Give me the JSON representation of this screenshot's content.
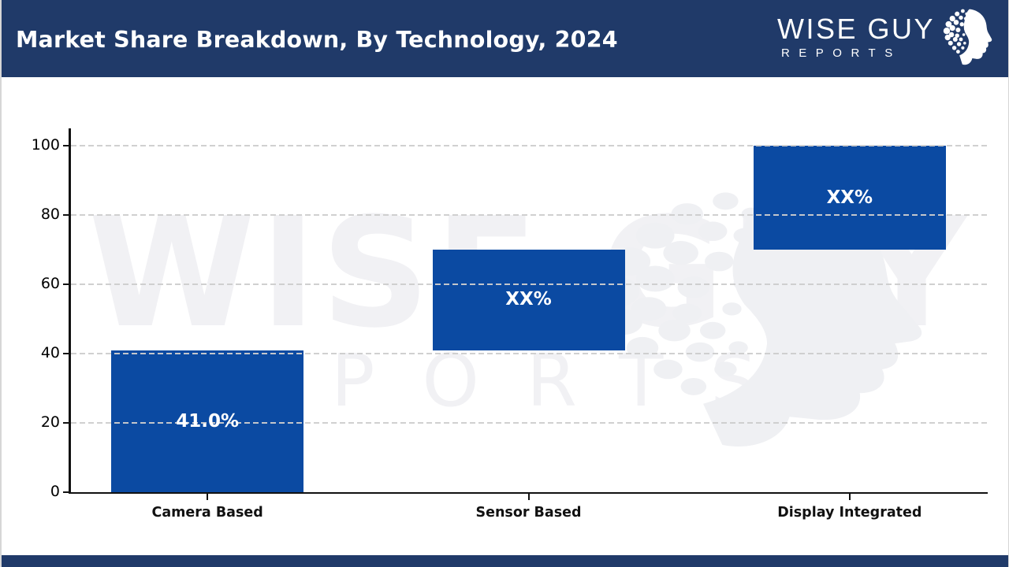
{
  "header": {
    "title": "Market Share Breakdown, By Technology, 2024",
    "logo": {
      "line1": "WISE GUY",
      "line2": "REPORTS"
    }
  },
  "watermark": {
    "line1": "WISE GUY",
    "line2": "REPORTS"
  },
  "chart_data": {
    "type": "bar",
    "variant": "floating-cumulative-bars",
    "title": "Market Share Breakdown, By Technology, 2024",
    "categories": [
      "Camera Based",
      "Sensor Based",
      "Display Integrated"
    ],
    "bars": [
      {
        "category": "Camera Based",
        "start": 0,
        "end": 41,
        "label": "41.0%"
      },
      {
        "category": "Sensor Based",
        "start": 41,
        "end": 70,
        "label": "XX%"
      },
      {
        "category": "Display Integrated",
        "start": 70,
        "end": 100,
        "label": "XX%"
      }
    ],
    "xlabel": "",
    "ylabel": "",
    "ylim": [
      0,
      100
    ],
    "yticks": [
      0,
      20,
      40,
      60,
      80,
      100
    ],
    "grid": {
      "axis": "y",
      "style": "dashed",
      "color": "#cccccc",
      "above_bars": true
    },
    "legend": null,
    "colors": {
      "bar": "#0b4aa2",
      "header_bg": "#203a69",
      "axis": "#111111",
      "bar_label_text": "#ffffff",
      "watermark": "#f1f1f4"
    }
  }
}
